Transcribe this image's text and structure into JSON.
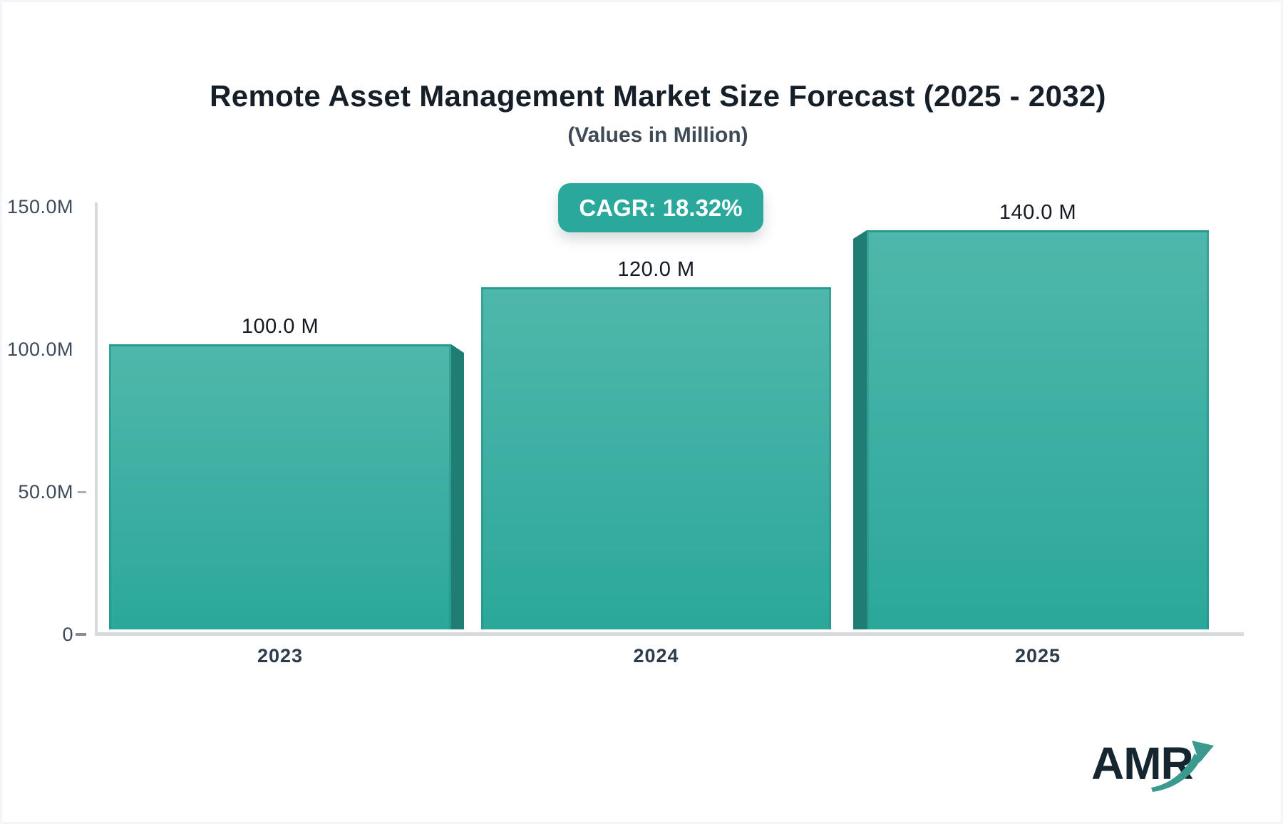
{
  "header": {
    "title": "Remote Asset Management Market Size Forecast (2025 - 2032)",
    "subtitle": "(Values in Million)"
  },
  "badge": {
    "label": "CAGR: 18.32%",
    "bg": "#2aa89b",
    "text_color": "#ffffff"
  },
  "chart_data": {
    "type": "bar",
    "title": "Remote Asset Management Market Size Forecast (2025 - 2032)",
    "subtitle": "(Values in Million)",
    "categories": [
      "2023",
      "2024",
      "2025"
    ],
    "values": [
      100.0,
      120.0,
      140.0
    ],
    "value_labels": [
      "100.0 M",
      "120.0 M",
      "140.0 M"
    ],
    "unit": "Million",
    "cagr": "18.32%",
    "y_axis": {
      "ticks": [
        "150.0M",
        "100.0M",
        "50.0M",
        "0"
      ],
      "range": [
        0,
        150
      ],
      "grid": false
    },
    "legend_position": "none",
    "bar_colors": {
      "gradient_top": "#4fb7ab",
      "gradient_bottom": "#2ba89a",
      "side_panel": "#1f7d73"
    }
  },
  "logo": {
    "text": "AMR",
    "arrow_icon": "trend-up-arrow-icon",
    "text_color": "#162630",
    "arrow_color": "#3a9a8e"
  }
}
